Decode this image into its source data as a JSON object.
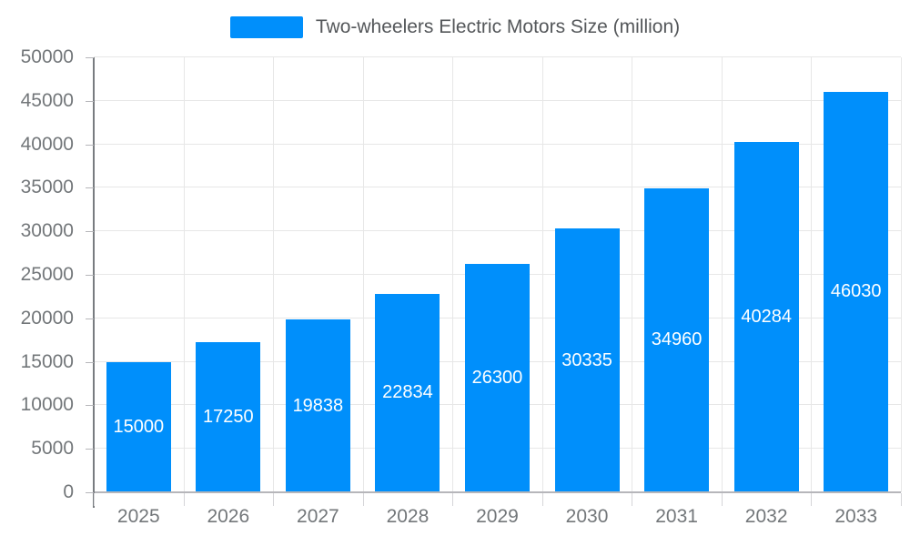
{
  "chart_data": {
    "type": "bar",
    "title": "Two-wheelers Electric Motors Size (million)",
    "categories": [
      "2025",
      "2026",
      "2027",
      "2028",
      "2029",
      "2030",
      "2031",
      "2032",
      "2033"
    ],
    "values": [
      15000,
      17250,
      19838,
      22834,
      26300,
      30335,
      34960,
      40284,
      46030
    ],
    "series": [
      {
        "name": "Two-wheelers Electric Motors Size (million)",
        "values": [
          15000,
          17250,
          19838,
          22834,
          26300,
          30335,
          34960,
          40284,
          46030
        ]
      }
    ],
    "xlabel": "",
    "ylabel": "",
    "ylim": [
      0,
      50000
    ],
    "ytick_step": 5000,
    "grid": true,
    "legend_position": "top",
    "value_labels": [
      "15000",
      "17250",
      "19838",
      "22834",
      "26300",
      "30335",
      "34960",
      "40284",
      "46030"
    ],
    "ytick_labels": [
      "0",
      "5000",
      "10000",
      "15000",
      "20000",
      "25000",
      "30000",
      "35000",
      "40000",
      "45000",
      "50000"
    ]
  },
  "legend": {
    "label": "Two-wheelers Electric Motors Size (million)"
  },
  "colors": {
    "bar": "#008FFB",
    "value_label": "#FFFFFF",
    "grid": "#E7E7E7",
    "y_axis_line": "#787C80",
    "x_axis_line": "#B6B6BA",
    "axis_label": "#73777A",
    "legend_text": "#54575A"
  }
}
